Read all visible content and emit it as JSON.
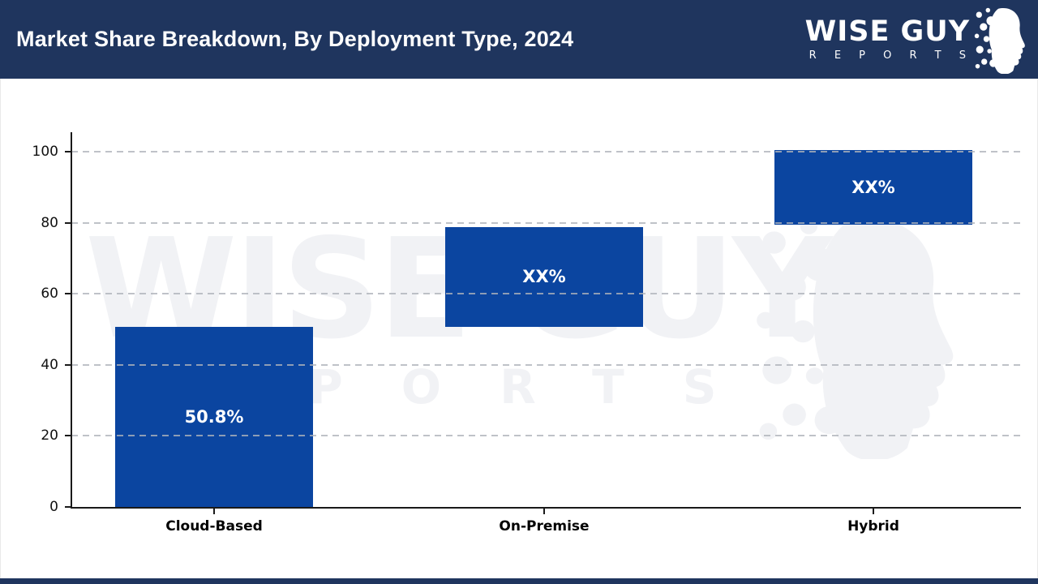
{
  "header": {
    "title": "Market Share Breakdown, By Deployment Type, 2024",
    "bg_color": "#1f355e",
    "logo": {
      "line1": "WISE GUY",
      "line2": "R E P O R T S"
    }
  },
  "watermark": {
    "line1": "WISE GUY",
    "line2": "REPORTS",
    "color": "#f1f2f5"
  },
  "footer": {
    "bg_color": "#1f355e"
  },
  "chart_data": {
    "type": "bar",
    "variant": "waterfall-floating-bars",
    "title": "Market Share Breakdown, By Deployment Type, 2024",
    "categories": [
      "Cloud-Based",
      "On-Premise",
      "Hybrid"
    ],
    "segments": [
      {
        "category": "Cloud-Based",
        "from": 0,
        "to": 50.8,
        "label": "50.8%"
      },
      {
        "category": "On-Premise",
        "from": 50.7,
        "to": 78.8,
        "label": "XX%"
      },
      {
        "category": "Hybrid",
        "from": 79.4,
        "to": 100.4,
        "label": "XX%"
      }
    ],
    "xlabel": "",
    "ylabel": "",
    "ylim": [
      0,
      105.5
    ],
    "yticks": [
      0,
      20,
      40,
      60,
      80,
      100
    ],
    "grid": "dashed-horizontal-over-bars",
    "legend": "none",
    "bar_color": "#0b45a0",
    "bar_label_color": "#ffffff",
    "axis_color": "#1a1a1a",
    "grid_color": "#b9bdc4"
  }
}
